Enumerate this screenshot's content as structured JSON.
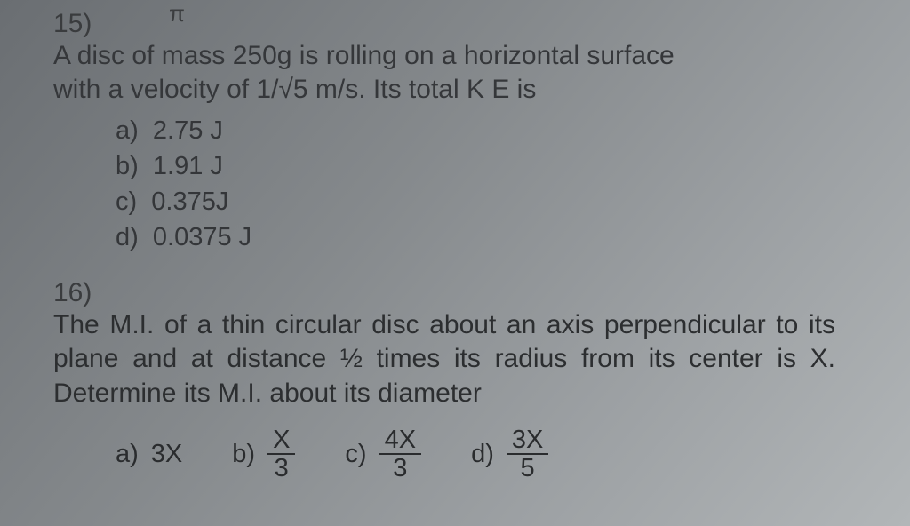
{
  "pi_symbol": "π",
  "q15": {
    "number": "15)",
    "line1": "A disc of mass 250g is rolling on a horizontal surface",
    "line2": "with a velocity of 1/√5 m/s. Its total K E is",
    "options": {
      "a": "a)  2.75 J",
      "b": "b)  1.91 J",
      "c": "c)  0.375J",
      "d": "d)  0.0375 J"
    }
  },
  "q16": {
    "number": "16)",
    "text": "The M.I. of a thin circular disc about an axis perpendicular to its plane and at distance ½ times its radius from its center is X. Determine its M.I. about its diameter",
    "options": {
      "a_label": "a)",
      "a_value": "3X",
      "b_label": "b)",
      "b_num": "X",
      "b_den": "3",
      "c_label": "c)",
      "c_num": "4X",
      "c_den": "3",
      "d_label": "d)",
      "d_num": "3X",
      "d_den": "5"
    }
  },
  "style": {
    "bg_gradient": [
      "#6a6e72",
      "#85898c",
      "#9ca0a3",
      "#b2b6b8"
    ],
    "text_color": "#303234",
    "font_size_body": 30,
    "frac_rule_color": "#2a2c2e"
  }
}
